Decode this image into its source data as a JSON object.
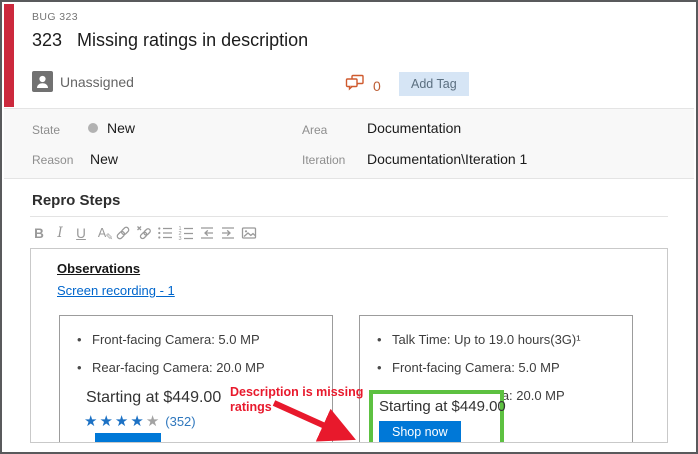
{
  "header": {
    "kicker": "BUG 323",
    "id": "323",
    "title": "Missing ratings in description",
    "assignee": "Unassigned",
    "comment_count": "0",
    "add_tag": "Add Tag"
  },
  "fields": {
    "state_label": "State",
    "state_value": "New",
    "reason_label": "Reason",
    "reason_value": "New",
    "area_label": "Area",
    "area_value": "Documentation",
    "iteration_label": "Iteration",
    "iteration_value": "Documentation\\Iteration 1"
  },
  "repro": {
    "title": "Repro Steps",
    "toolbar_icons": [
      "bold",
      "italic",
      "underline",
      "clear-format",
      "link",
      "unlink",
      "bullet-list",
      "numbered-list",
      "outdent",
      "indent",
      "insert-image"
    ],
    "heading": "Observations",
    "link_text": "Screen recording - 1"
  },
  "screenshot": {
    "left_card": {
      "specs": [
        "Front-facing Camera: 5.0 MP",
        "Rear-facing Camera: 20.0 MP"
      ],
      "price": "Starting at $449.00",
      "rating_filled": 4,
      "rating_empty": 1,
      "rating_count": "(352)"
    },
    "right_card": {
      "specs": [
        "Talk Time: Up to 19.0 hours(3G)¹",
        "Front-facing Camera: 5.0 MP",
        "Rear-facing Camera: 20.0 MP"
      ],
      "price": "Starting at $449.00",
      "shop_button": "Shop now"
    },
    "annotation_line1": "Description is missing",
    "annotation_line2": "ratings"
  },
  "colors": {
    "bug_red": "#cc293d",
    "accent_blue": "#0078d7",
    "highlight_green": "#5dc141",
    "annotation_red": "#e8192c",
    "link_blue": "#0066cc",
    "star_blue": "#1c71c4",
    "comment_orange": "#cf5a2e",
    "add_tag_bg": "#d6e5f5"
  }
}
